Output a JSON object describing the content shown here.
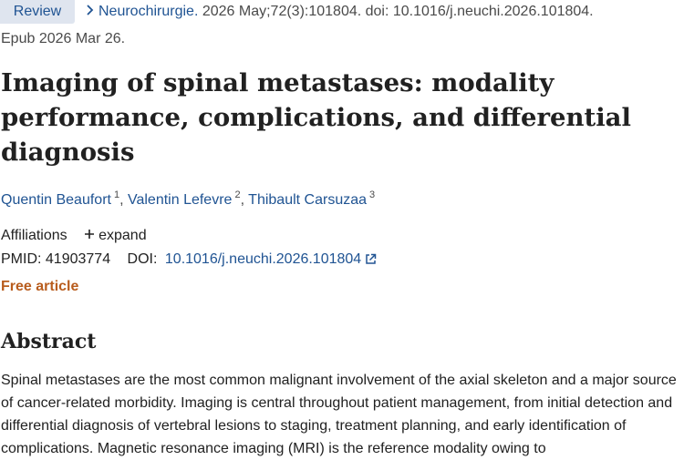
{
  "header": {
    "badge": "Review",
    "journal": "Neurochirurgie.",
    "citation": "2026 May;72(3):101804. doi: 10.1016/j.neuchi.2026.101804.",
    "epub": "Epub 2026 Mar 26."
  },
  "article": {
    "title": "Imaging of spinal metastases: modality performance, complications, and differential diagnosis",
    "authors": [
      {
        "name": "Quentin Beaufort",
        "sup": "1"
      },
      {
        "name": "Valentin Lefevre",
        "sup": "2"
      },
      {
        "name": "Thibault Carsuzaa",
        "sup": "3"
      }
    ],
    "affiliations_label": "Affiliations",
    "expand_label": "expand",
    "pmid_label": "PMID:",
    "pmid": "41903774",
    "doi_label": "DOI:",
    "doi": "10.1016/j.neuchi.2026.101804",
    "free_label": "Free article"
  },
  "abstract": {
    "heading": "Abstract",
    "text": "Spinal metastases are the most common malignant involvement of the axial skeleton and a major source of cancer-related morbidity. Imaging is central throughout patient management, from initial detection and differential diagnosis of vertebral lesions to staging, treatment planning, and early identification of complications. Magnetic resonance imaging (MRI) is the reference modality owing to"
  },
  "icons": {
    "chevron": "chevron-right-icon",
    "plus": "plus-icon",
    "external": "external-link-icon"
  },
  "colors": {
    "link": "#205493",
    "badge_bg": "#dfe5ef",
    "free": "#b85c1d"
  }
}
